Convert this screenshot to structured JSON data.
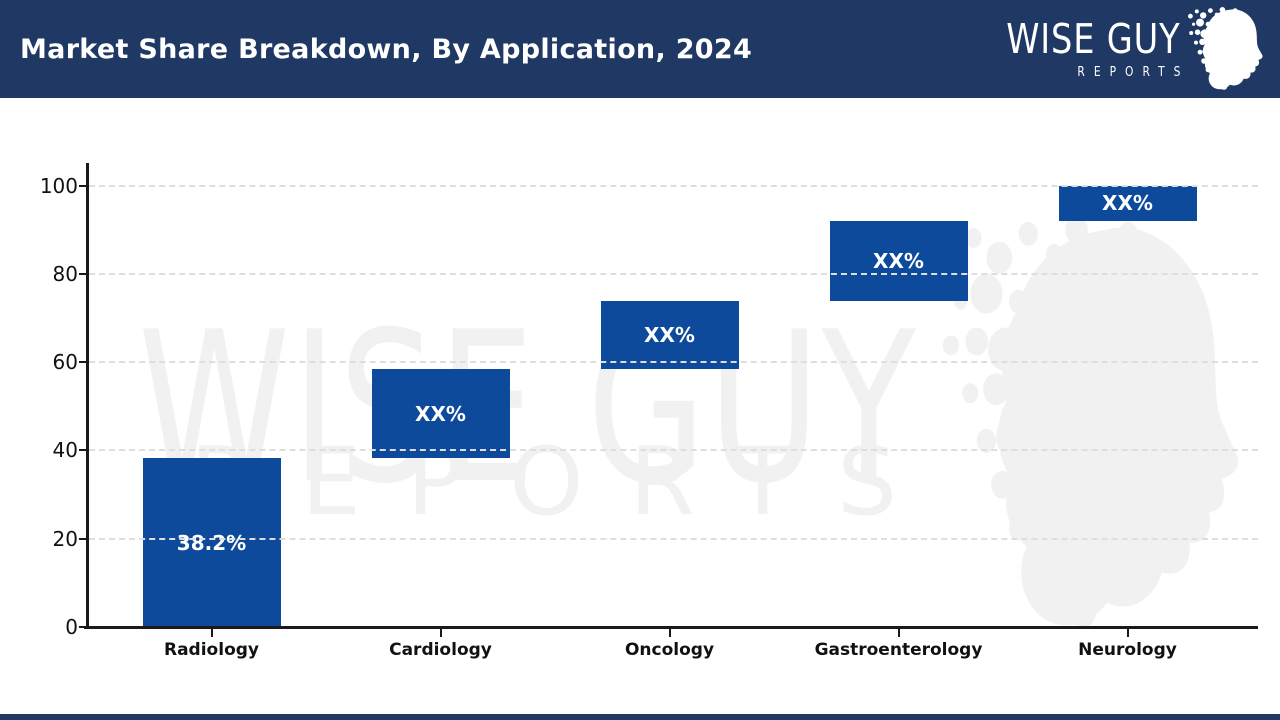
{
  "header": {
    "title": "Market Share Breakdown, By Application, 2024",
    "logo": {
      "line1": "WISE GUY",
      "line2": "REPORTS"
    }
  },
  "watermark": {
    "line1": "WISE GUY",
    "line2": "REPORTS"
  },
  "footer": {},
  "colors": {
    "header_bg": "#1f3864",
    "footer_bg": "#1f3864",
    "bar": "#0d4a9c",
    "grid": "#dedede",
    "axis": "#1a1a1a",
    "watermark": "#f1f1f1",
    "bar_label_text": "#ffffff",
    "tick_text": "#111111",
    "title_text": "#ffffff"
  },
  "chart_data": {
    "type": "bar",
    "subtype": "waterfall",
    "title": "Market Share Breakdown, By Application, 2024",
    "xlabel": "",
    "ylabel": "",
    "categories": [
      "Radiology",
      "Cardiology",
      "Oncology",
      "Gastroenterology",
      "Neurology"
    ],
    "segments": [
      {
        "category": "Radiology",
        "start": 0,
        "end": 38.2,
        "label": "38.2%"
      },
      {
        "category": "Cardiology",
        "start": 38.2,
        "end": 58.4,
        "label": "XX%"
      },
      {
        "category": "Oncology",
        "start": 58.4,
        "end": 73.8,
        "label": "XX%"
      },
      {
        "category": "Gastroenterology",
        "start": 73.8,
        "end": 91.9,
        "label": "XX%"
      },
      {
        "category": "Neurology",
        "start": 91.9,
        "end": 100.0,
        "label": "XX%"
      }
    ],
    "yticks": [
      0,
      20,
      40,
      60,
      80,
      100
    ],
    "ylim": [
      0,
      105
    ],
    "grid": "dashed-horizontal, drawn above bars",
    "legend": "none"
  }
}
